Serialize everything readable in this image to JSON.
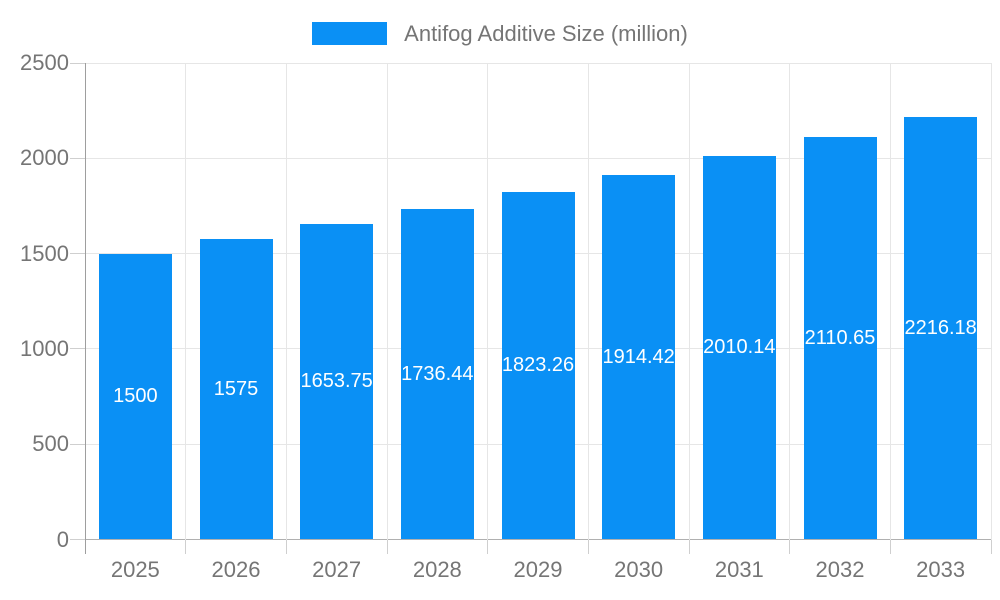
{
  "legend": {
    "label": "Antifog Additive Size (million)"
  },
  "colors": {
    "bar": "#0a90f5",
    "grid": "#e6e6e6",
    "axis_line": "#9e9e9e",
    "baseline": "#b0b0b0",
    "tick": "#cfcfcf",
    "axis_text": "#757575",
    "bar_label_text": "#ffffff",
    "background": "#ffffff"
  },
  "chart_data": {
    "type": "bar",
    "title": "Antifog Additive Size (million)",
    "categories": [
      "2025",
      "2026",
      "2027",
      "2028",
      "2029",
      "2030",
      "2031",
      "2032",
      "2033"
    ],
    "series": [
      {
        "name": "Antifog Additive Size (million)",
        "values": [
          1500,
          1575,
          1653.75,
          1736.44,
          1823.26,
          1914.42,
          2010.14,
          2110.65,
          2216.18
        ]
      }
    ],
    "xlabel": "",
    "ylabel": "",
    "ylim": [
      0,
      2500
    ],
    "yticks": [
      0,
      500,
      1000,
      1500,
      2000,
      2500
    ],
    "grid": true,
    "legend_position": "top-center",
    "value_labels": "inside-bar-centered-white"
  }
}
